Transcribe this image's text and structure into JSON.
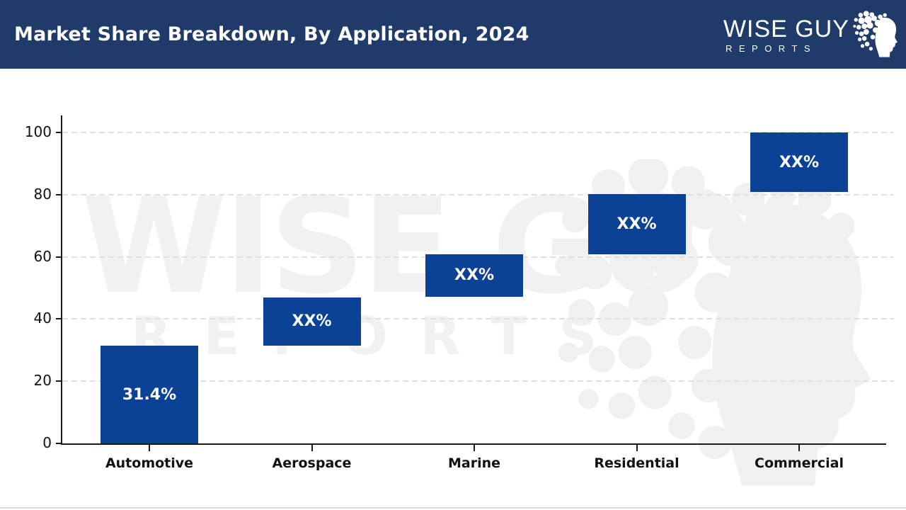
{
  "header": {
    "title": "Market Share Breakdown, By Application, 2024",
    "bg_color": "#203a6a"
  },
  "logo": {
    "name": "WISE GUY",
    "subtitle": "REPORTS"
  },
  "watermark": {
    "line1": "WISE GUY",
    "line2": "REPORTS"
  },
  "chart_data": {
    "type": "bar",
    "subtype": "waterfall",
    "title": "Market Share Breakdown, By Application, 2024",
    "categories": [
      "Automotive",
      "Aerospace",
      "Marine",
      "Residential",
      "Commercial"
    ],
    "segments": [
      {
        "category": "Automotive",
        "start": 0,
        "end": 31.4,
        "label": "31.4%"
      },
      {
        "category": "Aerospace",
        "start": 31.4,
        "end": 47.0,
        "label": "XX%"
      },
      {
        "category": "Marine",
        "start": 47.2,
        "end": 60.8,
        "label": "XX%"
      },
      {
        "category": "Residential",
        "start": 60.8,
        "end": 80.2,
        "label": "XX%"
      },
      {
        "category": "Commercial",
        "start": 80.8,
        "end": 100,
        "label": "XX%"
      }
    ],
    "yticks": [
      0,
      20,
      40,
      60,
      80,
      100
    ],
    "ylim": [
      0,
      105
    ],
    "xlabel": "",
    "ylabel": "",
    "grid": "horizontal-dashed",
    "legend": "none",
    "bar_color": "#0b4296",
    "bar_label_color": "#ffffff",
    "axis_color": "#1a1a1a"
  }
}
